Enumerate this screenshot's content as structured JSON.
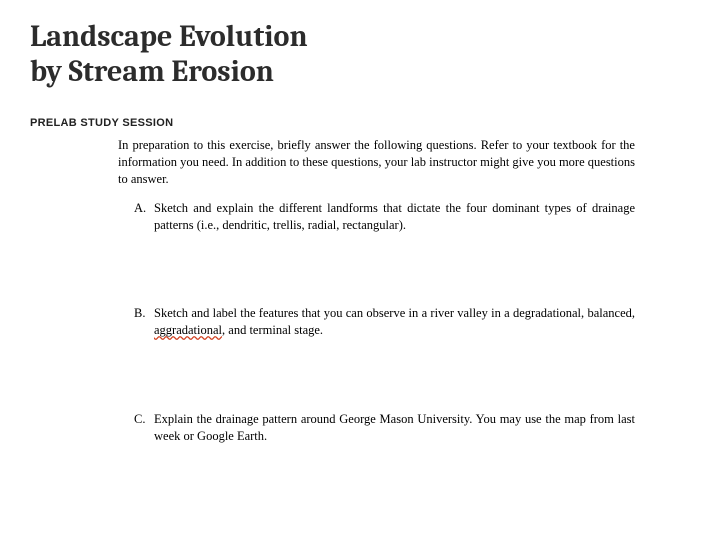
{
  "title_line1": "Landscape Evolution",
  "title_line2": "by Stream Erosion",
  "section_heading": "PRELAB STUDY SESSION",
  "intro": "In preparation to this exercise, briefly answer the following questions. Refer to your textbook for the information you need. In addition to these questions, your lab instructor might give you more questions to answer.",
  "questions": [
    {
      "label": "A.",
      "text": "Sketch and explain the different landforms that dictate the four dominant types of drainage patterns (i.e., dendritic, trellis, radial, rectangular)."
    },
    {
      "label": "B.",
      "pre": "Sketch and label the features that you can observe in a river valley in a degradational, balanced, ",
      "spellerr": "aggradational",
      "post": ", and terminal stage."
    },
    {
      "label": "C.",
      "text": "Explain the drainage pattern around George Mason University. You may use the map from last week or Google Earth."
    }
  ]
}
